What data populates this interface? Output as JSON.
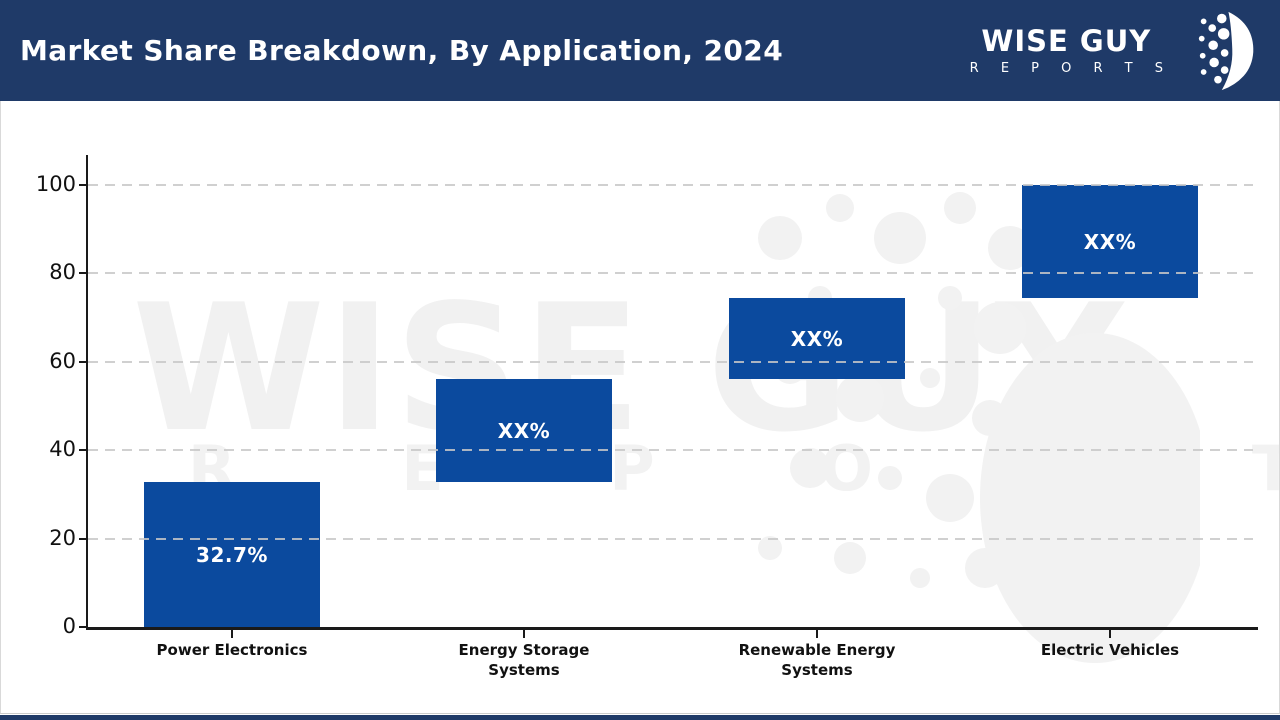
{
  "header": {
    "title": "Market Share Breakdown, By Application, 2024",
    "logo": {
      "line1": "WISE GUY",
      "line2": "R E P O R T S"
    }
  },
  "watermark": {
    "line1": "WISE GUY",
    "line2": "R E P O R T S"
  },
  "chart_data": {
    "type": "bar",
    "variant": "waterfall",
    "title": "Market Share Breakdown, By Application, 2024",
    "categories": [
      "Power Electronics",
      "Energy Storage\nSystems",
      "Renewable Energy\nSystems",
      "Electric Vehicles"
    ],
    "segments": [
      {
        "category": "Power Electronics",
        "start": 0,
        "end": 32.7,
        "label": "32.7%"
      },
      {
        "category": "Energy Storage Systems",
        "start": 32.7,
        "end": 56.1,
        "label": "XX%"
      },
      {
        "category": "Renewable Energy Systems",
        "start": 56.1,
        "end": 74.4,
        "label": "XX%"
      },
      {
        "category": "Electric Vehicles",
        "start": 74.4,
        "end": 100,
        "label": "XX%"
      }
    ],
    "ylim": [
      0,
      100
    ],
    "yticks": [
      0,
      20,
      40,
      60,
      80,
      100
    ],
    "grid": {
      "axis": "y",
      "style": "dashed",
      "color": "#d9d9d9",
      "drawn_over_bars": true
    },
    "xlabel": "",
    "ylabel": "",
    "legend": "none",
    "bar_color": "#0b4a9e",
    "bar_label_color": "#ffffff",
    "header_color": "#1f3a68"
  }
}
